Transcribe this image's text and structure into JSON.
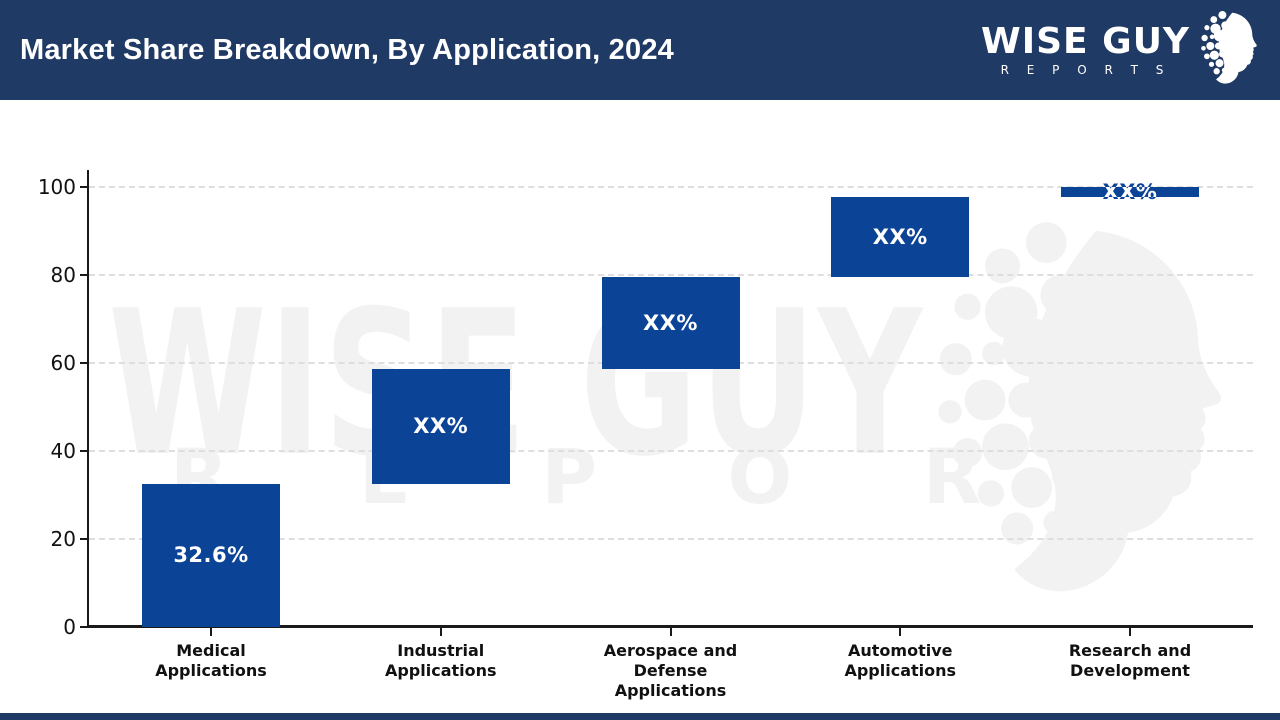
{
  "header": {
    "title": "Market Share Breakdown, By Application, 2024",
    "brand": {
      "name": "WISE GUY",
      "sub": "R E P O R T S"
    }
  },
  "watermark": {
    "line1": "WISE GUY",
    "line2": "R E P O R T S"
  },
  "colors": {
    "header_bg": "#203a66",
    "bar": "#0b4397",
    "bar_label": "#ffffff",
    "grid": "#dedede",
    "axis": "#1a1a1a",
    "watermark": "#f2f2f2"
  },
  "chart_data": {
    "type": "bar",
    "subtype": "waterfall",
    "title": "Market Share Breakdown, By Application, 2024",
    "categories": [
      "Medical\nApplications",
      "Industrial\nApplications",
      "Aerospace and\nDefense\nApplications",
      "Automotive\nApplications",
      "Research and\nDevelopment"
    ],
    "segments": [
      {
        "category": "Medical Applications",
        "start": 0,
        "end": 32.6,
        "label": "32.6%"
      },
      {
        "category": "Industrial Applications",
        "start": 32.6,
        "end": 58.6,
        "label": "XX%"
      },
      {
        "category": "Aerospace and Defense Applications",
        "start": 58.6,
        "end": 79.5,
        "label": "XX%"
      },
      {
        "category": "Automotive Applications",
        "start": 79.5,
        "end": 97.7,
        "label": "XX%"
      },
      {
        "category": "Research and Development",
        "start": 97.7,
        "end": 100,
        "label": "XX%"
      }
    ],
    "yticks": [
      0,
      20,
      40,
      60,
      80,
      100
    ],
    "ylim": [
      0,
      100
    ],
    "xlabel": "",
    "ylabel": "",
    "grid": "dashed-horizontal",
    "legend": "none"
  }
}
